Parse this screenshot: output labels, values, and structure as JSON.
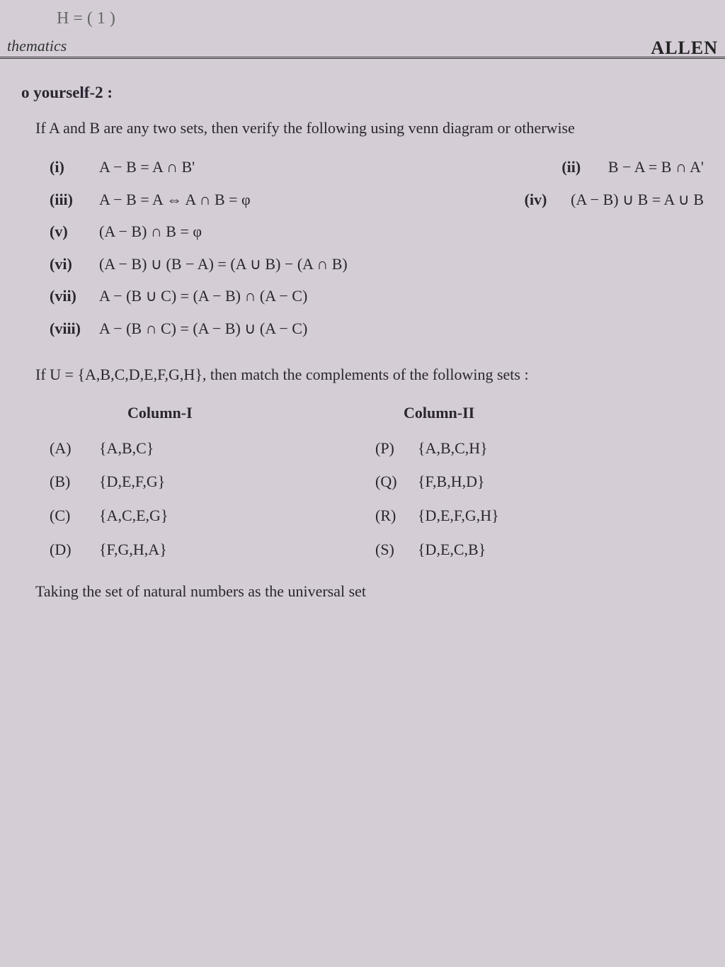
{
  "header": {
    "subject": "thematics",
    "brand": "ALLEN",
    "handwritten": "H = ( 1 )"
  },
  "section": {
    "title": "o yourself-2 :",
    "intro": "If A and B are any two sets, then verify the following using venn diagram or otherwise"
  },
  "items": [
    {
      "num": "(i)",
      "text": "A − B = A ∩ B'",
      "rnum": "(ii)",
      "rtext": "B − A = B ∩ A'"
    },
    {
      "num": "(iii)",
      "text": "A − B = A ⇔ A ∩ B = φ",
      "rnum": "(iv)",
      "rtext": "(A − B) ∪ B = A ∪ B"
    },
    {
      "num": "(v)",
      "text": "(A − B) ∩ B = φ",
      "rnum": "",
      "rtext": ""
    },
    {
      "num": "(vi)",
      "text": "(A − B) ∪ (B − A) = (A ∪ B) − (A ∩ B)",
      "rnum": "",
      "rtext": ""
    },
    {
      "num": "(vii)",
      "text": "A − (B ∪ C) = (A − B) ∩ (A − C)",
      "rnum": "",
      "rtext": ""
    },
    {
      "num": "(viii)",
      "text": "A − (B ∩ C) = (A − B) ∪ (A − C)",
      "rnum": "",
      "rtext": ""
    }
  ],
  "match": {
    "intro": "If U = {A,B,C,D,E,F,G,H}, then match the complements of the following sets :",
    "col1_title": "Column-I",
    "col2_title": "Column-II",
    "rows": [
      {
        "lnum": "(A)",
        "ltext": "{A,B,C}",
        "rnum": "(P)",
        "rtext": "{A,B,C,H}"
      },
      {
        "lnum": "(B)",
        "ltext": "{D,E,F,G}",
        "rnum": "(Q)",
        "rtext": "{F,B,H,D}"
      },
      {
        "lnum": "(C)",
        "ltext": "{A,C,E,G}",
        "rnum": "(R)",
        "rtext": "{D,E,F,G,H}"
      },
      {
        "lnum": "(D)",
        "ltext": "{F,G,H,A}",
        "rnum": "(S)",
        "rtext": "{D,E,C,B}"
      }
    ]
  },
  "bottom": {
    "text": "Taking the set of natural numbers as the universal set"
  }
}
